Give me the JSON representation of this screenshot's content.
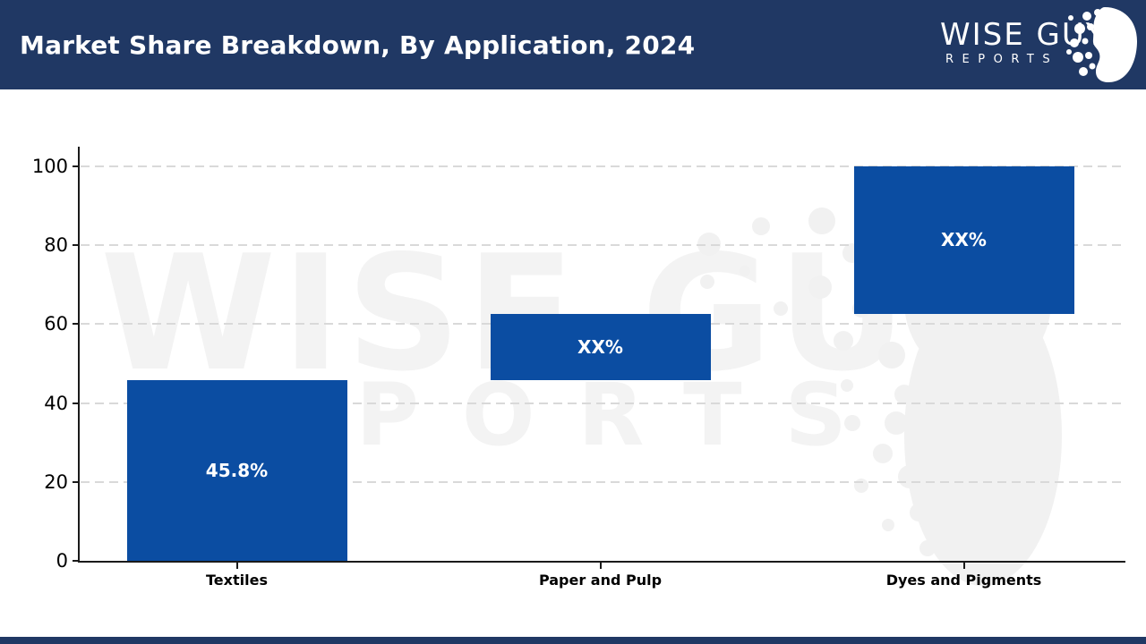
{
  "header": {
    "title": "Market Share Breakdown, By Application, 2024",
    "bg_color": "#203864",
    "logo": {
      "line1": "WISE GUY",
      "line2": "REPORTS"
    }
  },
  "watermark": {
    "line1": "WISE GUY",
    "line2": "REPORTS"
  },
  "chart_data": {
    "type": "bar",
    "subtype": "waterfall-floating-bars",
    "title": "Market Share Breakdown, By Application, 2024",
    "categories": [
      "Textiles",
      "Paper and Pulp",
      "Dyes and Pigments"
    ],
    "segments": [
      {
        "category": "Textiles",
        "start": 0,
        "end": 45.8,
        "value": 45.8,
        "label": "45.8%"
      },
      {
        "category": "Paper and Pulp",
        "start": 45.8,
        "end": 62.6,
        "value": 16.8,
        "label": "XX%"
      },
      {
        "category": "Dyes and Pigments",
        "start": 62.6,
        "end": 100,
        "value": 37.4,
        "label": "XX%"
      }
    ],
    "yticks": [
      0,
      20,
      40,
      60,
      80,
      100
    ],
    "ylim": [
      0,
      105
    ],
    "xlabel": "",
    "ylabel": "",
    "grid": "dashed-horizontal",
    "legend": "none",
    "bar_color": "#0b4da2",
    "bar_label_color": "#ffffff",
    "axis_color": "#1a1a1a",
    "gridline_color": "#d9d9d9"
  }
}
